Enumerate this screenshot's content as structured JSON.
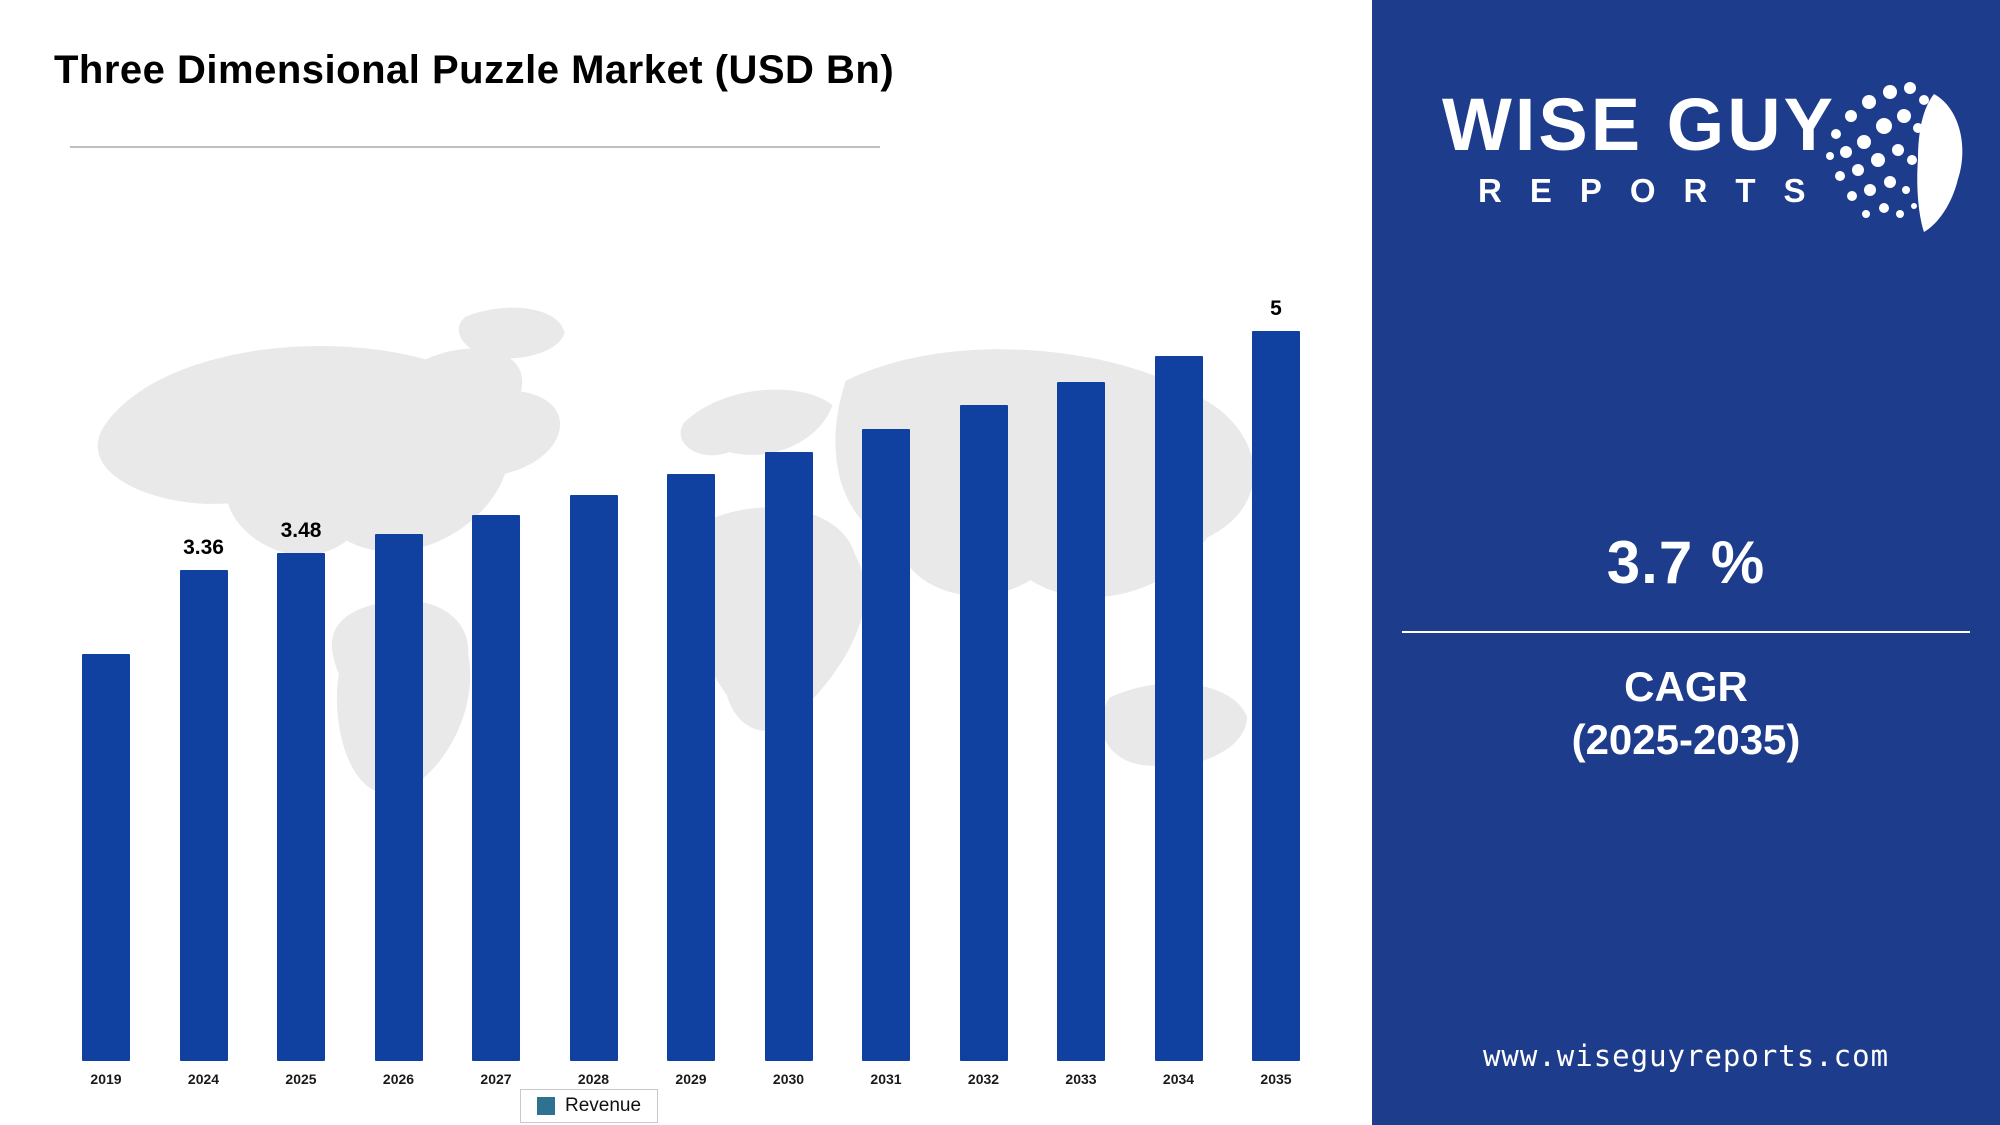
{
  "chart": {
    "title": "Three Dimensional Puzzle Market (USD Bn)",
    "legend_label": "Revenue"
  },
  "chart_data": {
    "type": "bar",
    "title": "Three Dimensional Puzzle Market (USD Bn)",
    "categories": [
      "2019",
      "2024",
      "2025",
      "2026",
      "2027",
      "2028",
      "2029",
      "2030",
      "2031",
      "2032",
      "2033",
      "2034",
      "2035"
    ],
    "values": [
      2.79,
      3.36,
      3.48,
      3.61,
      3.74,
      3.88,
      4.02,
      4.17,
      4.33,
      4.49,
      4.65,
      4.83,
      5
    ],
    "bar_labels": [
      "",
      "3.36",
      "3.48",
      "",
      "",
      "",
      "",
      "",
      "",
      "",
      "",
      "",
      "5"
    ],
    "series_name": "Revenue",
    "legend": [
      "Revenue"
    ],
    "legend_position": "bottom",
    "grid": false,
    "ylim": [
      0,
      5.5
    ],
    "bar_color": "#1040a0",
    "legend_swatch_color": "#2e7191"
  },
  "right_panel": {
    "logo_line1": "WISE GUY",
    "logo_line2": "REPORTS",
    "cagr_value": "3.7 %",
    "cagr_label": "CAGR",
    "cagr_range": "(2025-2035)",
    "website": "www.wiseguyreports.com",
    "bg_color": "#1e3c8c"
  }
}
